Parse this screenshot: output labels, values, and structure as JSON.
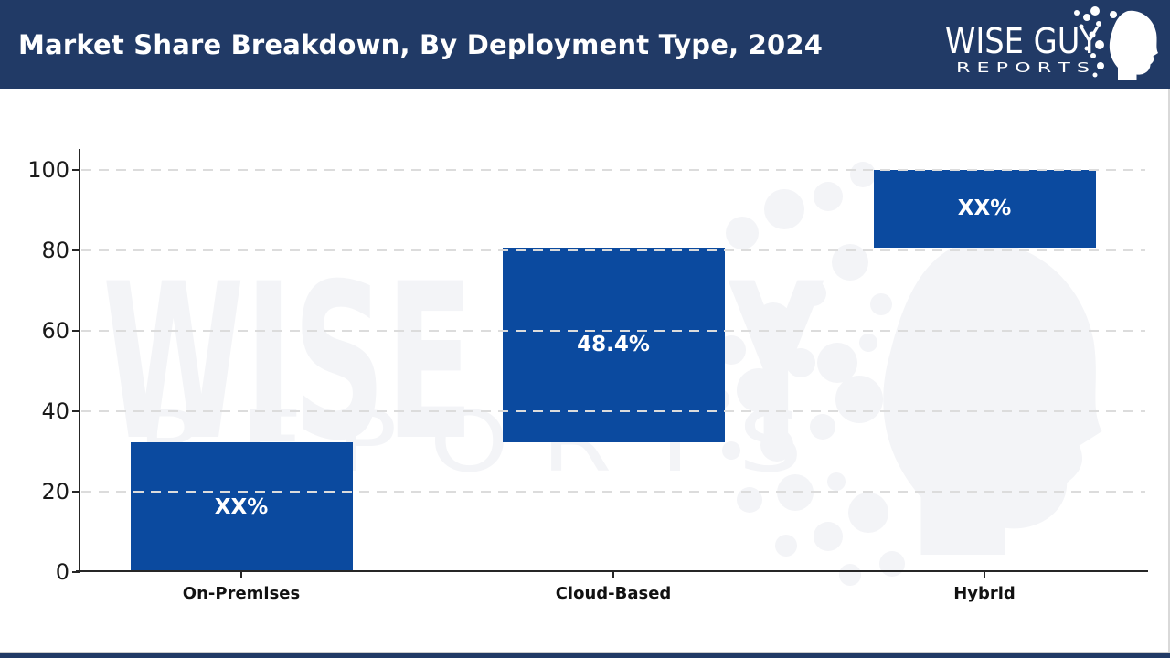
{
  "header": {
    "title": "Market Share Breakdown, By Deployment Type, 2024",
    "logo": {
      "line1": "WISE GUY",
      "line2": "R E P O R T S"
    }
  },
  "watermark": {
    "line1": "WISE GUY",
    "line2": "R E P O R T S"
  },
  "chart_data": {
    "type": "bar",
    "variant": "floating-waterfall",
    "title": "Market Share Breakdown, By Deployment Type, 2024",
    "categories": [
      "On-Premises",
      "Cloud-Based",
      "Hybrid"
    ],
    "segments": [
      {
        "category": "On-Premises",
        "start": 0,
        "end": 32.3,
        "value": 32.3,
        "label": "XX%"
      },
      {
        "category": "Cloud-Based",
        "start": 32.3,
        "end": 80.7,
        "value": 48.4,
        "label": "48.4%"
      },
      {
        "category": "Hybrid",
        "start": 80.7,
        "end": 100,
        "value": 19.3,
        "label": "XX%"
      }
    ],
    "y_ticks": [
      0,
      20,
      40,
      60,
      80,
      100
    ],
    "ylim": [
      0,
      100
    ],
    "xlabel": "",
    "ylabel": "",
    "grid": "dashed-horizontal",
    "legend": "none",
    "bar_color": "#0b4a9f"
  },
  "colors": {
    "header_bg": "#213a66",
    "footer_bg": "#213a66",
    "bar": "#0b4a9f",
    "grid": "#dcdcdc",
    "axis": "#262626",
    "tick_text": "#1a1a1a",
    "watermark": "#f3f4f7",
    "title_text": "#ffffff"
  }
}
